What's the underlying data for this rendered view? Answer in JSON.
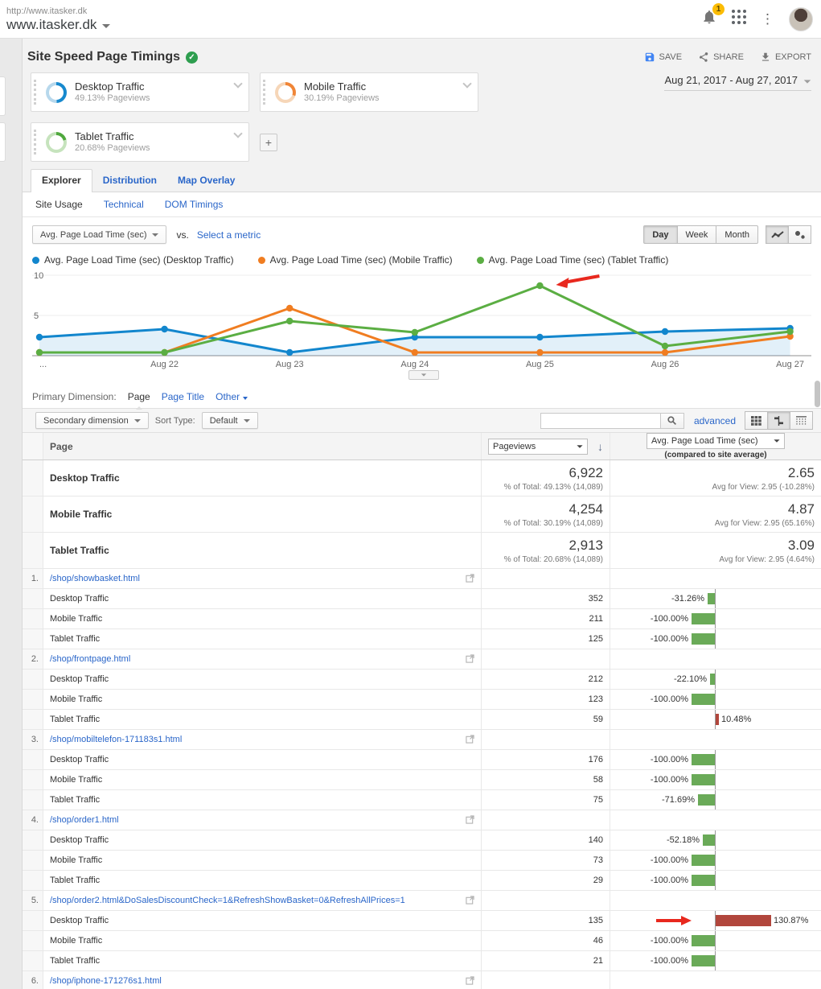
{
  "header": {
    "property_url": "http://www.itasker.dk",
    "account_name": "www.itasker.dk",
    "notification_count": "1"
  },
  "titlebar": {
    "title": "Site Speed Page Timings",
    "save_label": "SAVE",
    "share_label": "SHARE",
    "export_label": "EXPORT"
  },
  "date_range": "Aug 21, 2017 - Aug 27, 2017",
  "segments": [
    {
      "name": "Desktop Traffic",
      "subtitle": "49.13% Pageviews",
      "pct": 49.13,
      "color": "#1789ce",
      "track": "#b7d8ec"
    },
    {
      "name": "Mobile Traffic",
      "subtitle": "30.19% Pageviews",
      "pct": 30.19,
      "color": "#f08536",
      "track": "#f6d6b8"
    },
    {
      "name": "Tablet Traffic",
      "subtitle": "20.68% Pageviews",
      "pct": 20.68,
      "color": "#4fa83d",
      "track": "#c6e3bd"
    }
  ],
  "add_segment_label": "+",
  "tabs": [
    {
      "label": "Explorer",
      "active": true
    },
    {
      "label": "Distribution",
      "active": false
    },
    {
      "label": "Map Overlay",
      "active": false
    }
  ],
  "subtabs": [
    {
      "label": "Site Usage",
      "active": true
    },
    {
      "label": "Technical",
      "active": false
    },
    {
      "label": "DOM Timings",
      "active": false
    }
  ],
  "metric_bar": {
    "metric_selector": "Avg. Page Load Time (sec)",
    "vs_label": "vs.",
    "select_metric_label": "Select a metric",
    "granularity": [
      "Day",
      "Week",
      "Month"
    ],
    "granularity_active": "Day"
  },
  "chart_data": {
    "type": "line",
    "x_labels": [
      "...",
      "Aug 22",
      "Aug 23",
      "Aug 24",
      "Aug 25",
      "Aug 26",
      "Aug 27"
    ],
    "ylim": [
      0,
      10
    ],
    "yticks": [
      5,
      10
    ],
    "grid": true,
    "legend_position": "top",
    "series": [
      {
        "name": "Avg. Page Load Time (sec) (Desktop Traffic)",
        "color": "#1286cd",
        "area": true,
        "values": [
          2.3,
          3.3,
          0.4,
          2.3,
          2.3,
          3.0,
          3.4
        ]
      },
      {
        "name": "Avg. Page Load Time (sec) (Mobile Traffic)",
        "color": "#f07d21",
        "area": false,
        "values": [
          0.4,
          0.4,
          5.9,
          0.4,
          0.4,
          0.4,
          2.4
        ]
      },
      {
        "name": "Avg. Page Load Time (sec) (Tablet Traffic)",
        "color": "#5bae43",
        "area": false,
        "values": [
          0.4,
          0.4,
          4.3,
          2.9,
          8.7,
          1.2,
          3.0
        ]
      }
    ],
    "annotation": {
      "type": "red-arrow",
      "color": "#e8281e",
      "target_series": 2,
      "target_index": 4,
      "note": "points at Tablet Traffic peak on Aug 25"
    }
  },
  "primary_dimension": {
    "label": "Primary Dimension:",
    "options": [
      {
        "label": "Page",
        "active": true
      },
      {
        "label": "Page Title",
        "active": false
      },
      {
        "label": "Other",
        "active": false,
        "caret": true
      }
    ]
  },
  "table_toolbar": {
    "secondary_dimension_label": "Secondary dimension",
    "sort_type_label": "Sort Type:",
    "sort_type_value": "Default",
    "search_value": "",
    "advanced_label": "advanced",
    "view_buttons": [
      "table-view",
      "comparison-view",
      "pivot-view"
    ],
    "view_active": "comparison-view"
  },
  "table": {
    "header": {
      "page": "Page",
      "pageviews": "Pageviews",
      "metric": "Avg. Page Load Time (sec)",
      "metric_note": "(compared to site average)"
    },
    "bar_colors": {
      "negative": "#6aaa58",
      "positive": "#b1463c"
    },
    "summary_rows": [
      {
        "label": "Desktop Traffic",
        "pageviews": "6,922",
        "pageviews_sub": "% of Total: 49.13% (14,089)",
        "metric": "2.65",
        "metric_sub": "Avg for View: 2.95 (-10.28%)"
      },
      {
        "label": "Mobile Traffic",
        "pageviews": "4,254",
        "pageviews_sub": "% of Total: 30.19% (14,089)",
        "metric": "4.87",
        "metric_sub": "Avg for View: 2.95 (65.16%)"
      },
      {
        "label": "Tablet Traffic",
        "pageviews": "2,913",
        "pageviews_sub": "% of Total: 20.68% (14,089)",
        "metric": "3.09",
        "metric_sub": "Avg for View: 2.95 (4.64%)"
      }
    ],
    "groups": [
      {
        "num": "1.",
        "url": "/shop/showbasket.html",
        "rows": [
          {
            "label": "Desktop Traffic",
            "pageviews": "352",
            "delta": -31.26,
            "delta_label": "-31.26%"
          },
          {
            "label": "Mobile Traffic",
            "pageviews": "211",
            "delta": -100.0,
            "delta_label": "-100.00%"
          },
          {
            "label": "Tablet Traffic",
            "pageviews": "125",
            "delta": -100.0,
            "delta_label": "-100.00%"
          }
        ]
      },
      {
        "num": "2.",
        "url": "/shop/frontpage.html",
        "rows": [
          {
            "label": "Desktop Traffic",
            "pageviews": "212",
            "delta": -22.1,
            "delta_label": "-22.10%"
          },
          {
            "label": "Mobile Traffic",
            "pageviews": "123",
            "delta": -100.0,
            "delta_label": "-100.00%"
          },
          {
            "label": "Tablet Traffic",
            "pageviews": "59",
            "delta": 10.48,
            "delta_label": "10.48%"
          }
        ]
      },
      {
        "num": "3.",
        "url": "/shop/mobiltelefon-171183s1.html",
        "rows": [
          {
            "label": "Desktop Traffic",
            "pageviews": "176",
            "delta": -100.0,
            "delta_label": "-100.00%"
          },
          {
            "label": "Mobile Traffic",
            "pageviews": "58",
            "delta": -100.0,
            "delta_label": "-100.00%"
          },
          {
            "label": "Tablet Traffic",
            "pageviews": "75",
            "delta": -71.69,
            "delta_label": "-71.69%"
          }
        ]
      },
      {
        "num": "4.",
        "url": "/shop/order1.html",
        "rows": [
          {
            "label": "Desktop Traffic",
            "pageviews": "140",
            "delta": -52.18,
            "delta_label": "-52.18%"
          },
          {
            "label": "Mobile Traffic",
            "pageviews": "73",
            "delta": -100.0,
            "delta_label": "-100.00%"
          },
          {
            "label": "Tablet Traffic",
            "pageviews": "29",
            "delta": -100.0,
            "delta_label": "-100.00%"
          }
        ]
      },
      {
        "num": "5.",
        "url": "/shop/order2.html&DoSalesDiscountCheck=1&RefreshShowBasket=0&RefreshAllPrices=1",
        "rows": [
          {
            "label": "Desktop Traffic",
            "pageviews": "135",
            "delta": 130.87,
            "delta_label": "130.87%",
            "annotation": "red-arrow"
          },
          {
            "label": "Mobile Traffic",
            "pageviews": "46",
            "delta": -100.0,
            "delta_label": "-100.00%"
          },
          {
            "label": "Tablet Traffic",
            "pageviews": "21",
            "delta": -100.0,
            "delta_label": "-100.00%"
          }
        ]
      },
      {
        "num": "6.",
        "url": "/shop/iphone-171276s1.html",
        "rows": []
      }
    ]
  }
}
